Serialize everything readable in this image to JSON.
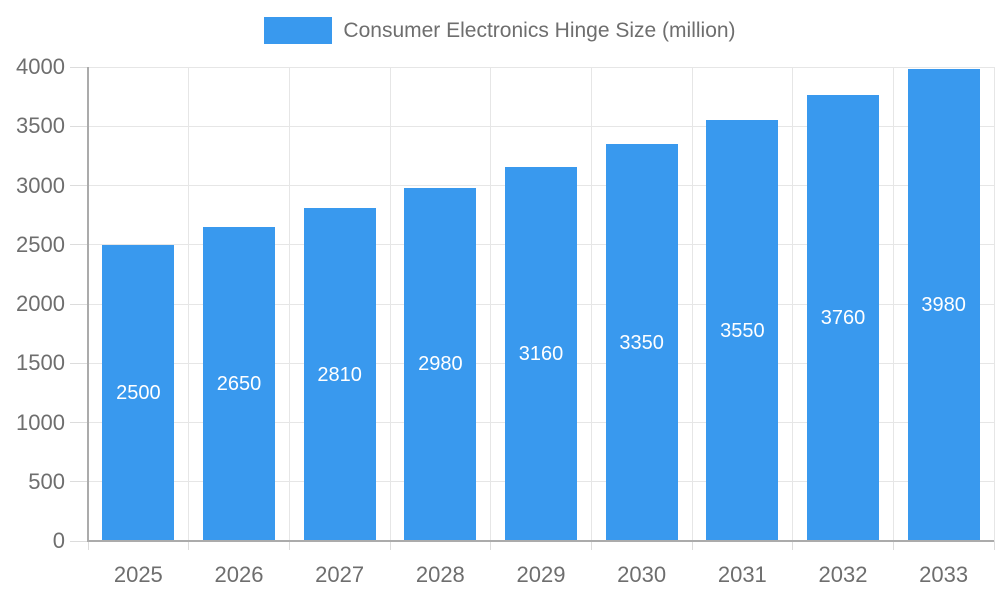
{
  "legend": {
    "label": "Consumer Electronics Hinge Size (million)"
  },
  "chart_data": {
    "type": "bar",
    "title": "Consumer Electronics Hinge Size (million)",
    "categories": [
      "2025",
      "2026",
      "2027",
      "2028",
      "2029",
      "2030",
      "2031",
      "2032",
      "2033"
    ],
    "values": [
      2500,
      2650,
      2810,
      2980,
      3160,
      3350,
      3550,
      3760,
      3980
    ],
    "series_name": "Consumer Electronics Hinge Size (million)",
    "xlabel": "",
    "ylabel": "",
    "ylim": [
      0,
      4000
    ],
    "ytick_step": 500,
    "ytick_labels": [
      "0",
      "500",
      "1000",
      "1500",
      "2000",
      "2500",
      "3000",
      "3500",
      "4000"
    ],
    "grid": "on",
    "legend_position": "top",
    "bar_color": "#3999ee",
    "value_label_color": "#ffffff",
    "axis_text_color": "#6e6e6e"
  }
}
